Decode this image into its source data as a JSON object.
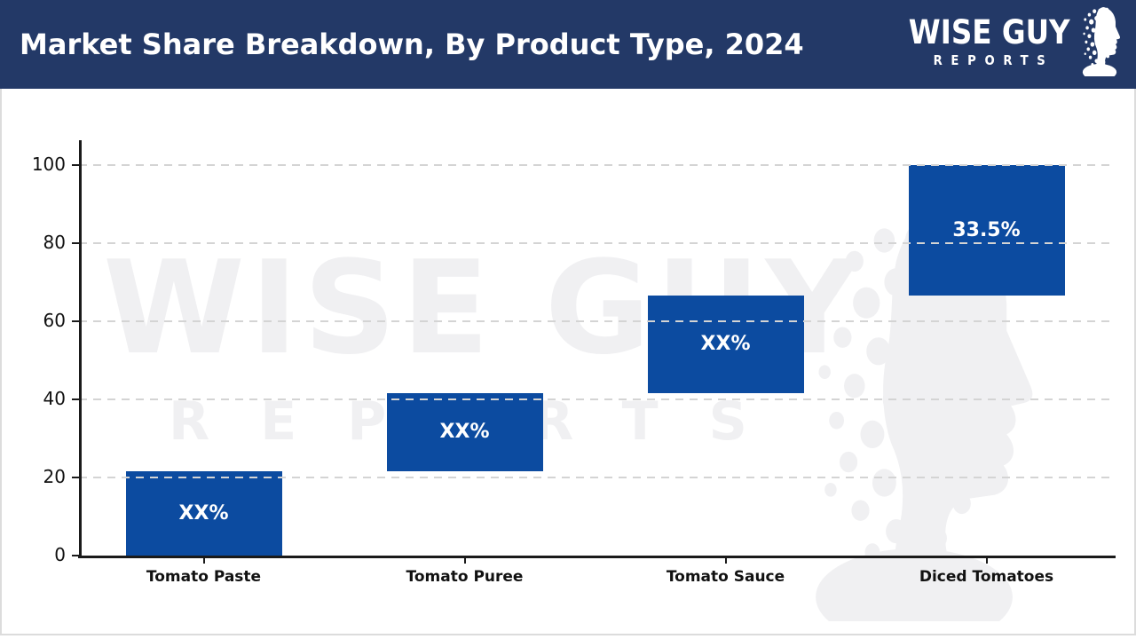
{
  "header": {
    "title": "Market Share Breakdown, By Product Type, 2024"
  },
  "logo": {
    "brand_line1": "WISE GUY",
    "brand_line2": "REPORTS"
  },
  "watermark": {
    "line1": "WISE GUY",
    "line2": "REPORTS"
  },
  "chart_data": {
    "type": "waterfall",
    "title": "Market Share Breakdown, By Product Type, 2024",
    "categories": [
      "Tomato Paste",
      "Tomato Puree",
      "Tomato Sauce",
      "Diced Tomatoes"
    ],
    "segments": [
      {
        "category": "Tomato Paste",
        "start": 0,
        "end": 21.7,
        "value": 21.7,
        "label": "XX%"
      },
      {
        "category": "Tomato Puree",
        "start": 21.7,
        "end": 41.5,
        "value": 19.8,
        "label": "XX%"
      },
      {
        "category": "Tomato Sauce",
        "start": 41.5,
        "end": 66.5,
        "value": 25.0,
        "label": "XX%"
      },
      {
        "category": "Diced Tomatoes",
        "start": 66.5,
        "end": 100,
        "value": 33.5,
        "label": "33.5%"
      }
    ],
    "xlabel": "",
    "ylabel": "",
    "y_axis": {
      "range": [
        0,
        100
      ],
      "ticks": [
        0,
        20,
        40,
        60,
        80,
        100
      ]
    },
    "grid": "horizontal dashed",
    "legend": "none",
    "bar_color": "#0c4ba0",
    "bar_label_color": "#ffffff"
  },
  "colors": {
    "header_bg": "#233967",
    "header_text": "#ffffff",
    "bar": "#0c4ba0",
    "watermark": "#f0f0f2",
    "grid": "#d4d4d4",
    "axis": "#1a1a1a",
    "frame_border": "#dcdcdc"
  }
}
